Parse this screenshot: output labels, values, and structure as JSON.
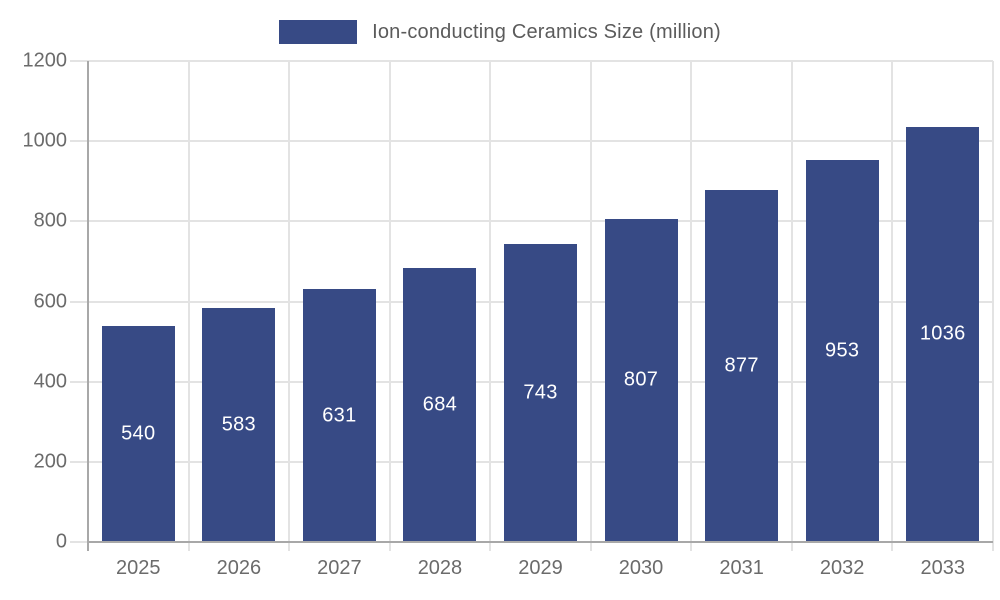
{
  "chart_data": {
    "type": "bar",
    "title": "Ion-conducting Ceramics Size (million)",
    "categories": [
      "2025",
      "2026",
      "2027",
      "2028",
      "2029",
      "2030",
      "2031",
      "2032",
      "2033"
    ],
    "values": [
      540,
      583,
      631,
      684,
      743,
      807,
      877,
      953,
      1036
    ],
    "xlabel": "",
    "ylabel": "",
    "ylim": [
      0,
      1200
    ],
    "yticks": [
      0,
      200,
      400,
      600,
      800,
      1000,
      1200
    ],
    "grid": true,
    "legend_position": "top-center",
    "value_labels": "inside-center",
    "colors": {
      "bar": "#374A85",
      "value_label": "#ffffff",
      "grid_line": "#e3e3e3",
      "axis_line": "#a8a8a8",
      "tick_label": "#6b6b6b",
      "legend_text": "#5b5b5b",
      "background": "#ffffff"
    }
  }
}
